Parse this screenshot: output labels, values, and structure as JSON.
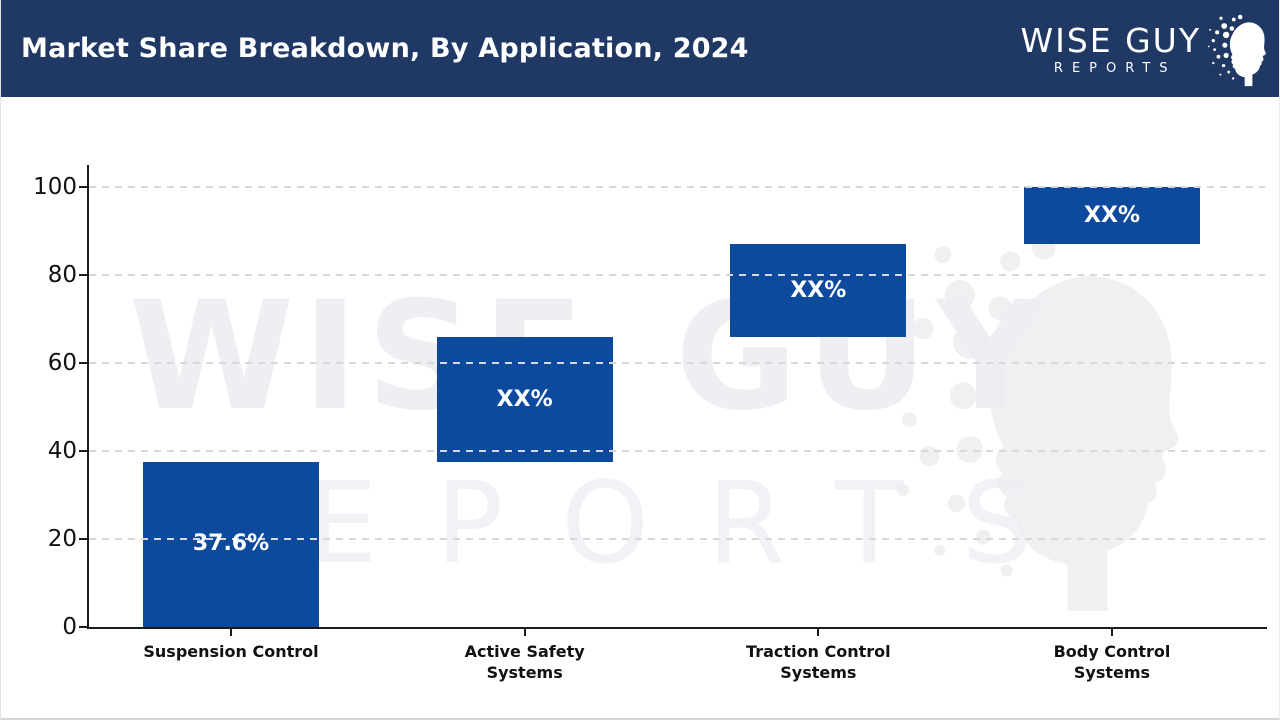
{
  "header": {
    "title": "Market Share Breakdown, By Application, 2024",
    "bg_color": "#1f3864",
    "logo": {
      "line1": "WISE GUY",
      "line2": "REPORTS"
    }
  },
  "watermark": {
    "line1": "WISE GUY",
    "line2": "REPORTS"
  },
  "chart_data": {
    "type": "bar",
    "subtype": "floating-segment-waterfall",
    "title": "Market Share Breakdown, By Application, 2024",
    "categories": [
      "Suspension Control",
      "Active Safety Systems",
      "Traction Control Systems",
      "Body Control Systems"
    ],
    "bars": [
      {
        "category_lines": [
          "Suspension Control"
        ],
        "label": "37.6%",
        "value": 37.6,
        "start": 0,
        "end": 37.6
      },
      {
        "category_lines": [
          "Active Safety",
          "Systems"
        ],
        "label": "XX%",
        "value": null,
        "start": 37.6,
        "end": 65.8
      },
      {
        "category_lines": [
          "Traction Control",
          "Systems"
        ],
        "label": "XX%",
        "value": null,
        "start": 65.8,
        "end": 87
      },
      {
        "category_lines": [
          "Body Control",
          "Systems"
        ],
        "label": "XX%",
        "value": null,
        "start": 87,
        "end": 100
      }
    ],
    "yticks": [
      0,
      20,
      40,
      60,
      80,
      100
    ],
    "ylim": [
      0,
      105
    ],
    "xlabel": "",
    "ylabel": "",
    "grid": "horizontal-dashed",
    "legend": "none",
    "bar_color": "#0d4a9e",
    "grid_color": "#d8d8d8",
    "axis_color": "#1a1a1a",
    "label_color": "#111111",
    "watermark_color": "#efeff3"
  }
}
